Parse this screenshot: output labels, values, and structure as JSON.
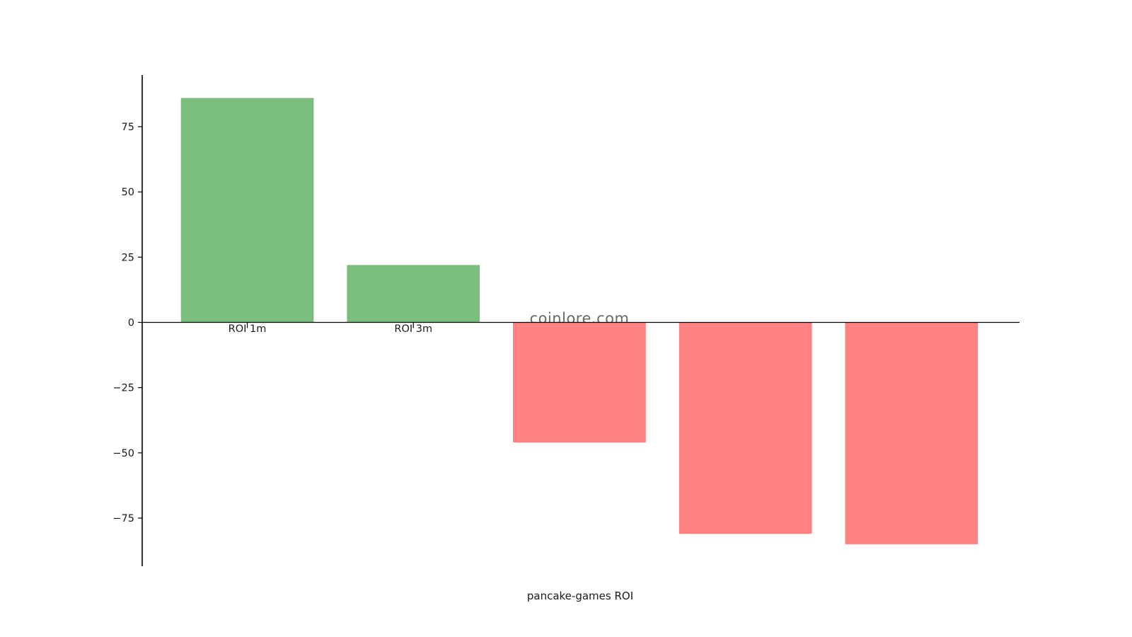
{
  "figure": {
    "background": "#ffffff"
  },
  "watermark": {
    "text": "coinlore.com",
    "color": "#6a6a6a"
  },
  "chart_data": {
    "type": "bar",
    "title": "",
    "xlabel": "pancake-games ROI",
    "ylabel": "",
    "categories": [
      "ROI 1m",
      "ROI 3m",
      "",
      "",
      ""
    ],
    "values": [
      86,
      22,
      -46,
      -81,
      -85
    ],
    "bar_colors": [
      "#7cbf7c",
      "#7cbf7c",
      "#ff8180",
      "#ff8180",
      "#ff8180"
    ],
    "positive_color": "#7cbf7c",
    "negative_color": "#ff8180",
    "y_ticks": [
      75,
      50,
      25,
      0,
      -25,
      -50,
      -75
    ],
    "y_tick_labels": [
      "75",
      "50",
      "25",
      "0",
      "−25",
      "−50",
      "−75"
    ],
    "ylim": [
      -93,
      95
    ],
    "grid": false,
    "legend": "none",
    "axis_color": "#000000",
    "tick_text_color": "#1a1a1a"
  }
}
